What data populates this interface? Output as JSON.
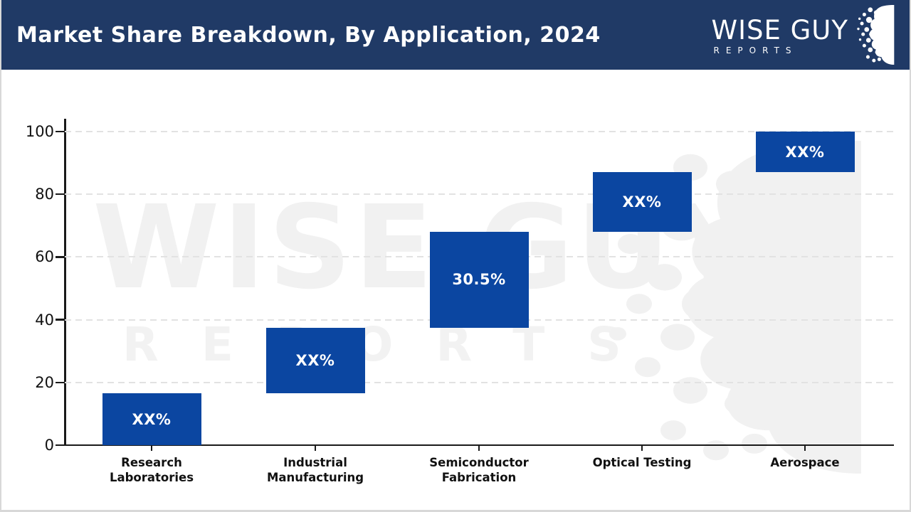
{
  "header": {
    "title": "Market Share Breakdown, By Application, 2024",
    "bg_color": "#203a66",
    "logo": {
      "line1": "WISE GUY",
      "line2": "REPORTS"
    }
  },
  "watermark": {
    "line1": "WISE GUY",
    "line2": "REPORTS"
  },
  "chart_data": {
    "type": "bar",
    "variant": "floating-segment-waterfall",
    "title": "Market Share Breakdown, By Application, 2024",
    "xlabel": "",
    "ylabel": "",
    "ylim": [
      0,
      105
    ],
    "yticks": [
      0,
      20,
      40,
      60,
      80,
      100
    ],
    "grid": true,
    "grid_style": "dashed",
    "legend": null,
    "bar_color": "#0b46a1",
    "label_color": "#ffffff",
    "categories": [
      [
        "Research",
        "Laboratories"
      ],
      [
        "Industrial",
        "Manufacturing"
      ],
      [
        "Semiconductor",
        "Fabrication"
      ],
      [
        "Optical Testing"
      ],
      [
        "Aerospace"
      ]
    ],
    "bars": [
      {
        "category": "Research Laboratories",
        "start": 0,
        "end": 16.5,
        "value": 16.5,
        "label": "XX%"
      },
      {
        "category": "Industrial Manufacturing",
        "start": 16.5,
        "end": 37.5,
        "value": 21,
        "label": "XX%"
      },
      {
        "category": "Semiconductor Fabrication",
        "start": 37.5,
        "end": 68,
        "value": 30.5,
        "label": "30.5%"
      },
      {
        "category": "Optical Testing",
        "start": 68,
        "end": 87,
        "value": 19,
        "label": "XX%"
      },
      {
        "category": "Aerospace",
        "start": 87,
        "end": 100,
        "value": 13,
        "label": "XX%"
      }
    ]
  }
}
